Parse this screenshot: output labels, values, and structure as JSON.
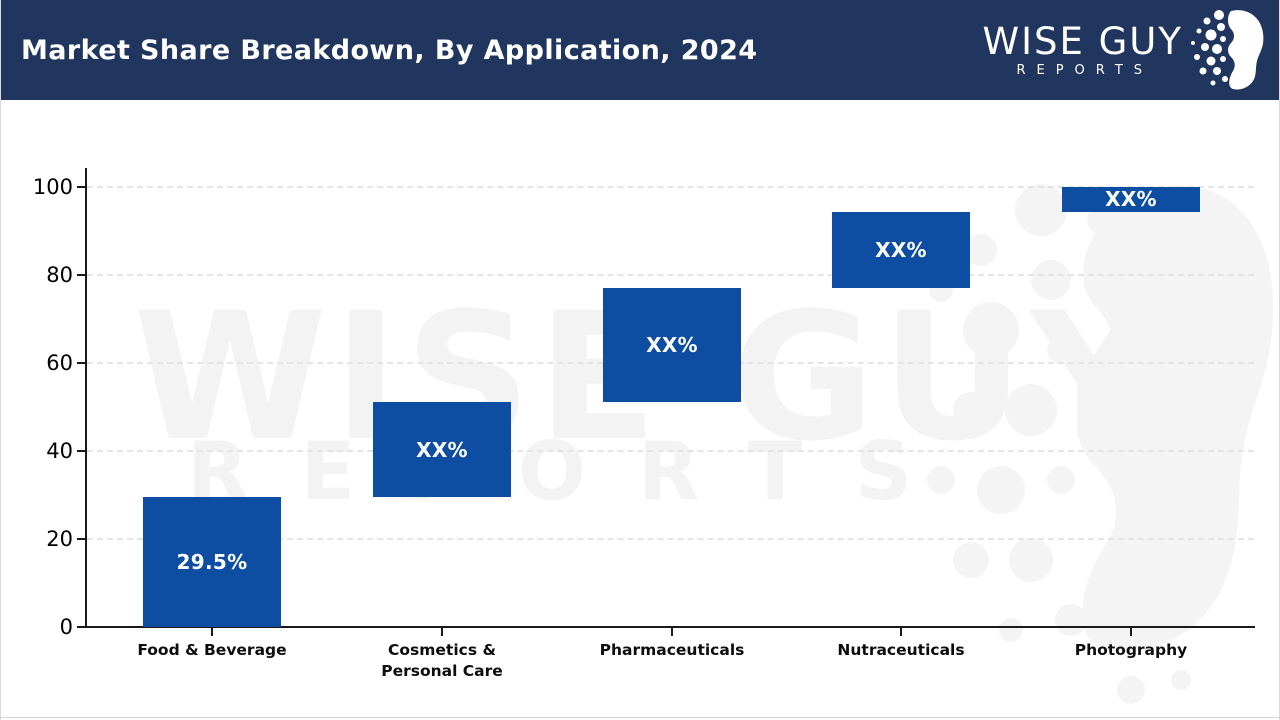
{
  "header": {
    "title": "Market Share Breakdown, By Application, 2024",
    "logo": {
      "line1": "WISE GUY",
      "line2": "REPORTS"
    }
  },
  "watermark": {
    "line1": "WISE GUY",
    "line2": "REPORTS"
  },
  "colors": {
    "header_bg": "#21365e",
    "bar": "#0d4da2",
    "axis": "#1a1a1a",
    "grid": "#e4e4e4",
    "bar_label_text": "#ffffff",
    "watermark": "#f3f3f3"
  },
  "chart_data": {
    "type": "bar",
    "subtype": "waterfall",
    "title": "Market Share Breakdown, By Application, 2024",
    "categories": [
      "Food & Beverage",
      "Cosmetics &\nPersonal Care",
      "Pharmaceuticals",
      "Nutraceuticals",
      "Photography"
    ],
    "segments": [
      {
        "category": "Food & Beverage",
        "start": 0,
        "end": 29.5,
        "label": "29.5%"
      },
      {
        "category": "Cosmetics & Personal Care",
        "start": 29.5,
        "end": 51,
        "label": "XX%"
      },
      {
        "category": "Pharmaceuticals",
        "start": 51,
        "end": 77,
        "label": "XX%"
      },
      {
        "category": "Nutraceuticals",
        "start": 77,
        "end": 94.3,
        "label": "XX%"
      },
      {
        "category": "Photography",
        "start": 94.3,
        "end": 100,
        "label": "XX%"
      }
    ],
    "ylabel": "",
    "xlabel": "",
    "yticks": [
      0,
      20,
      40,
      60,
      80,
      100
    ],
    "ylim": [
      0,
      105
    ],
    "grid": "horizontal-dashed",
    "legend": "none"
  }
}
